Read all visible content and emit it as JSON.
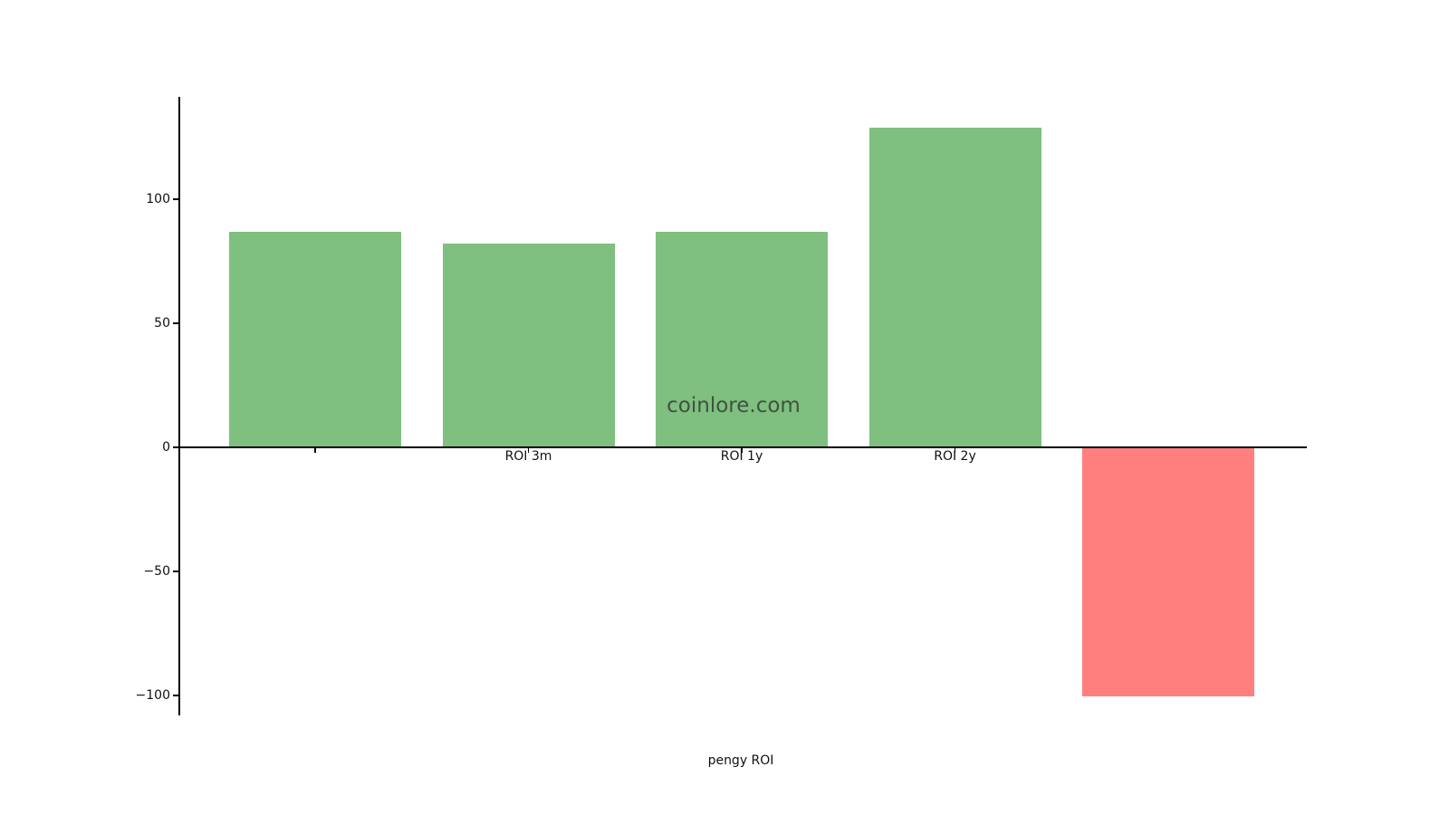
{
  "chart_data": {
    "type": "bar",
    "title": "",
    "xlabel": "pengy ROI",
    "ylabel": "",
    "categories": [
      "",
      "ROI 3m",
      "ROI 1y",
      "ROI 2y",
      ""
    ],
    "values": [
      87,
      82,
      87,
      129,
      -100
    ],
    "positive_color": "#7fbf7f",
    "negative_color": "#ff7f7f",
    "y_ticks": [
      100,
      50,
      0,
      -50,
      -100
    ],
    "ylim": [
      -108,
      141
    ],
    "grid": false,
    "legend": "none",
    "axis_color": "#000000",
    "background_color": "#ffffff",
    "watermark": "coinlore.com"
  }
}
